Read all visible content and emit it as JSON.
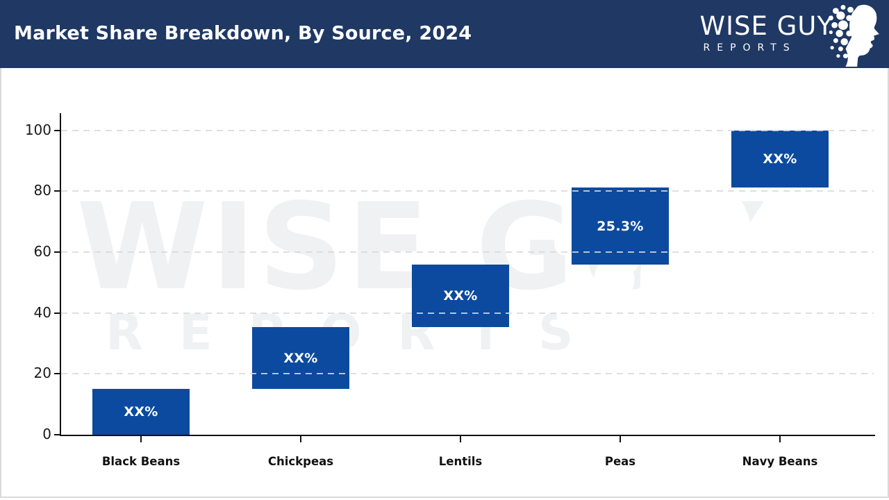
{
  "header": {
    "bg_color": "#1f3864",
    "title": "Market Share Breakdown, By Source, 2024",
    "logo": {
      "wordmark": "WISE GUY",
      "subtext": "REPORTS"
    }
  },
  "watermark": {
    "line1": "WISE GUY",
    "line2": "REPORTS"
  },
  "chart_data": {
    "type": "bar",
    "subtype": "waterfall-floating-bars",
    "title": "Market Share Breakdown, By Source, 2024",
    "xlabel": "",
    "ylabel": "",
    "categories": [
      "Black Beans",
      "Chickpeas",
      "Lentils",
      "Peas",
      "Navy Beans"
    ],
    "segments": [
      {
        "category": "Black Beans",
        "start": 0,
        "end": 15.0,
        "label": "XX%"
      },
      {
        "category": "Chickpeas",
        "start": 15.0,
        "end": 35.4,
        "label": "XX%"
      },
      {
        "category": "Lentils",
        "start": 35.4,
        "end": 55.8,
        "label": "XX%"
      },
      {
        "category": "Peas",
        "start": 55.8,
        "end": 81.1,
        "label": "25.3%"
      },
      {
        "category": "Navy Beans",
        "start": 81.1,
        "end": 100.0,
        "label": "XX%"
      }
    ],
    "yticks": [
      0,
      20,
      40,
      60,
      80,
      100
    ],
    "ylim": [
      0,
      105.6
    ],
    "grid": "horizontal-dashed",
    "legend": "none",
    "bar_color": "#0b4a9e",
    "value_label_color": "#ffffff",
    "grid_color": "#d9d9d9",
    "axis_color": "#111111",
    "tick_label_color": "#1a1a1a"
  }
}
